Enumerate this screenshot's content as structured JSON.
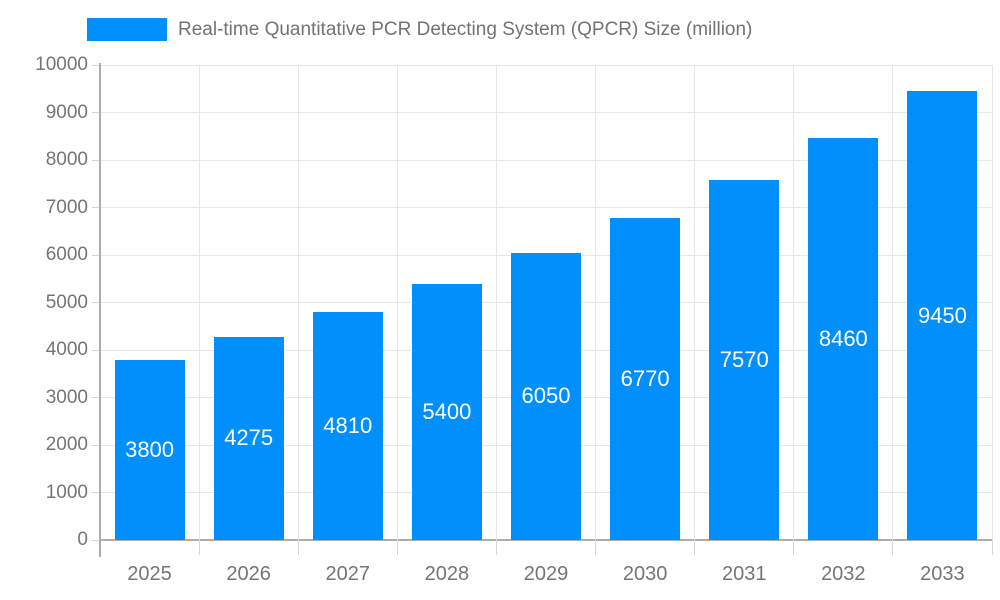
{
  "accent_color": "#008FFB",
  "legend": {
    "label": "Real-time Quantitative PCR Detecting System (QPCR) Size (million)"
  },
  "chart_data": {
    "type": "bar",
    "title": "Real-time Quantitative PCR Detecting System (QPCR) Size (million)",
    "categories": [
      "2025",
      "2026",
      "2027",
      "2028",
      "2029",
      "2030",
      "2031",
      "2032",
      "2033"
    ],
    "values": [
      3800,
      4275,
      4810,
      5400,
      6050,
      6770,
      7570,
      8460,
      9450
    ],
    "value_labels": [
      "3800",
      "4275",
      "4810",
      "5400",
      "6050",
      "6770",
      "7570",
      "8460",
      "9450"
    ],
    "xlabel": "",
    "ylabel": "",
    "ylim": [
      0,
      10000
    ],
    "y_tick_labels": [
      "0",
      "1000",
      "2000",
      "3000",
      "4000",
      "5000",
      "6000",
      "7000",
      "8000",
      "9000",
      "10000"
    ],
    "grid": "on",
    "legend_position": "top-left",
    "colors": {
      "bar": "#008FFB",
      "bar_value_text": "#ffffff",
      "axis_text": "#757575",
      "legend_text": "#737373",
      "gridline": "#e7e7e7",
      "axis_line": "#adadad",
      "tick": "#d6d6d6"
    }
  }
}
